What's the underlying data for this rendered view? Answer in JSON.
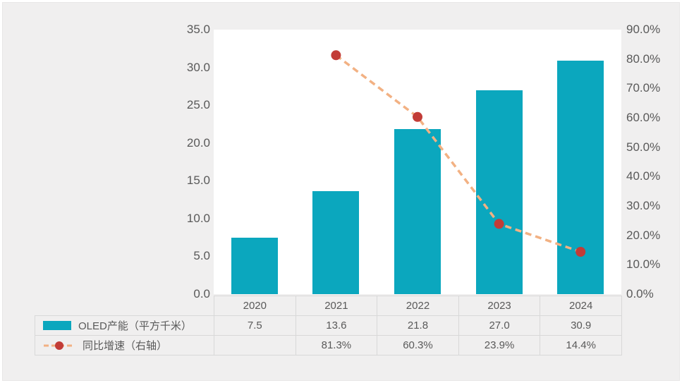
{
  "chart_data": {
    "type": "combo",
    "title": "",
    "categories": [
      "2020",
      "2021",
      "2022",
      "2023",
      "2024"
    ],
    "series": [
      {
        "name": "OLED产能（平方千米）",
        "type": "bar",
        "axis": "left",
        "values": [
          7.5,
          13.6,
          21.8,
          27.0,
          30.9
        ]
      },
      {
        "name": "同比增速（右轴）",
        "type": "line",
        "line_style": "dashed",
        "axis": "right",
        "unit": "%",
        "values": [
          null,
          81.3,
          60.3,
          23.9,
          14.4
        ]
      }
    ],
    "left_axis": {
      "min": 0,
      "max": 35,
      "step": 5,
      "tick_labels": [
        "35.0",
        "30.0",
        "25.0",
        "20.0",
        "15.0",
        "10.0",
        "5.0",
        "0.0"
      ]
    },
    "right_axis": {
      "min": 0,
      "max": 90,
      "step": 10,
      "tick_labels": [
        "90.0%",
        "80.0%",
        "70.0%",
        "60.0%",
        "50.0%",
        "40.0%",
        "30.0%",
        "20.0%",
        "10.0%",
        "0.0%"
      ]
    },
    "grid": false,
    "legend_position": "data-table-left"
  },
  "data_table": {
    "capacity_label": "OLED产能（平方千米）",
    "growth_label": "同比增速（右轴）",
    "capacity_values": [
      "7.5",
      "13.6",
      "21.8",
      "27.0",
      "30.9"
    ],
    "growth_values": [
      "",
      "81.3%",
      "60.3%",
      "23.9%",
      "14.4%"
    ]
  },
  "colors": {
    "bar": "#0ba7be",
    "line": "#f2b183",
    "marker": "#c23c37",
    "plot_background": "#ffffff",
    "chart_background": "#f0efef",
    "axis_text": "#595959",
    "table_border": "#d8d8d8"
  }
}
